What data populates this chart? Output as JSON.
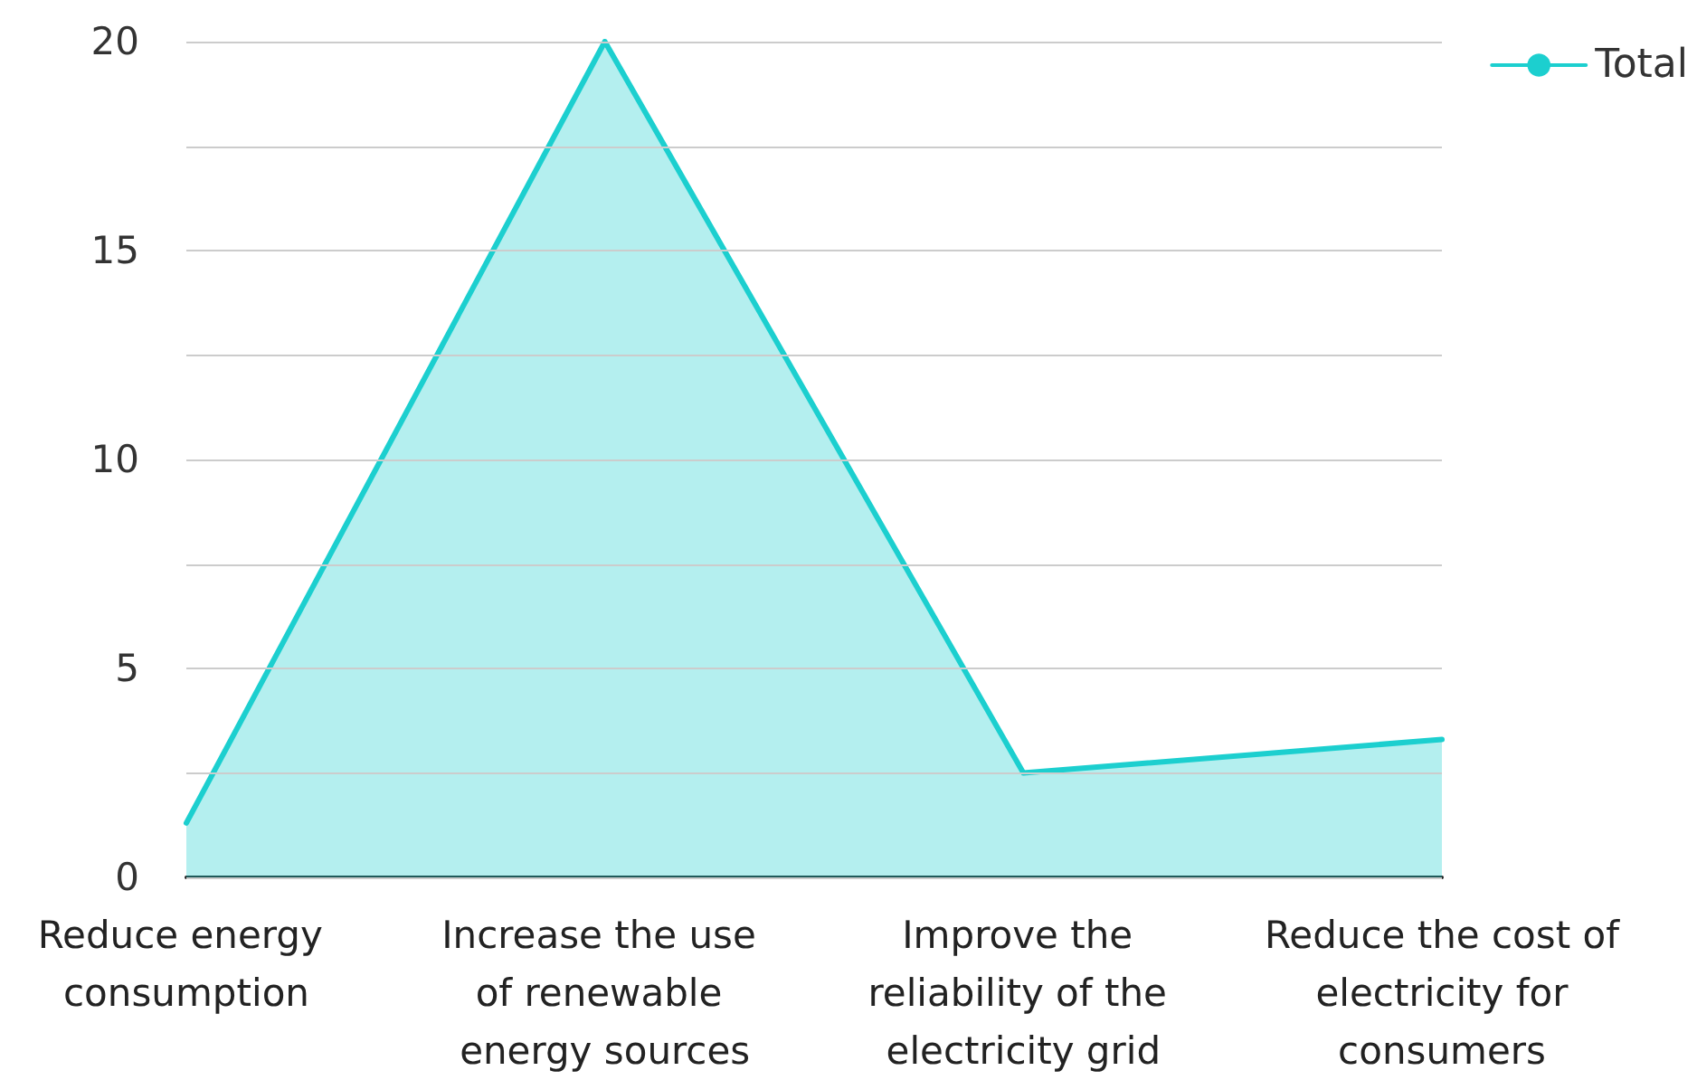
{
  "chart_data": {
    "type": "area",
    "categories": [
      "Reduce energy consumption",
      "Increase the use of renewable energy sources",
      "Improve the reliability of the electricity grid",
      "Reduce the cost of electricity for consumers"
    ],
    "series": [
      {
        "name": "Total",
        "color": "#1ccfcf",
        "values": [
          1.3,
          20,
          2.5,
          3.3
        ]
      }
    ],
    "ylim": [
      0,
      20
    ],
    "yticks": [
      0,
      {
        "value": 2.5,
        "label": null
      },
      5,
      {
        "value": 7.5,
        "label": null
      },
      10,
      {
        "value": 12.5,
        "label": null
      },
      15,
      {
        "value": 17.5,
        "label": null
      },
      20
    ],
    "grid": "y",
    "legend": "top right",
    "marker": "none",
    "line_style": "solid"
  }
}
